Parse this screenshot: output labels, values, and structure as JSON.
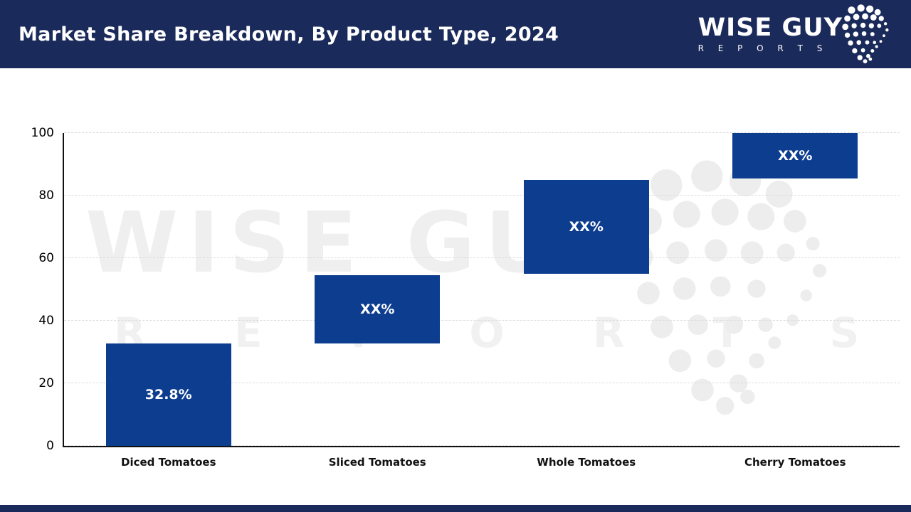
{
  "header": {
    "title": "Market Share Breakdown, By Product Type, 2024",
    "logo": {
      "line1": "WISE GUY",
      "line2": "R E P O R T S"
    }
  },
  "watermark": {
    "line1": "WISE GU",
    "line2": "R E P O R T S"
  },
  "colors": {
    "header_bg": "#1a2a5a",
    "bar": "#0d3d8f",
    "bar_label": "#ffffff",
    "axis": "#111111",
    "gridline": "#dcdcdc"
  },
  "chart_data": {
    "type": "bar",
    "subtype": "floating-waterfall",
    "title": "Market Share Breakdown, By Product Type, 2024",
    "categories": [
      "Diced Tomatoes",
      "Sliced Tomatoes",
      "Whole Tomatoes",
      "Cherry Tomatoes"
    ],
    "bars": [
      {
        "category": "Diced Tomatoes",
        "start": 0,
        "end": 32.8,
        "label": "32.8%"
      },
      {
        "category": "Sliced Tomatoes",
        "start": 32.8,
        "end": 54.5,
        "label": "XX%"
      },
      {
        "category": "Whole Tomatoes",
        "start": 55,
        "end": 85,
        "label": "XX%"
      },
      {
        "category": "Cherry Tomatoes",
        "start": 85.5,
        "end": 100,
        "label": "XX%"
      }
    ],
    "xlabel": "",
    "ylabel": "",
    "ylim": [
      0,
      100
    ],
    "yticks": [
      0,
      20,
      40,
      60,
      80,
      100
    ],
    "grid": "horizontal-dashed",
    "legend": "none",
    "bar_color": "#0d3d8f",
    "label_color": "#ffffff",
    "bar_width_fraction": 0.15
  }
}
